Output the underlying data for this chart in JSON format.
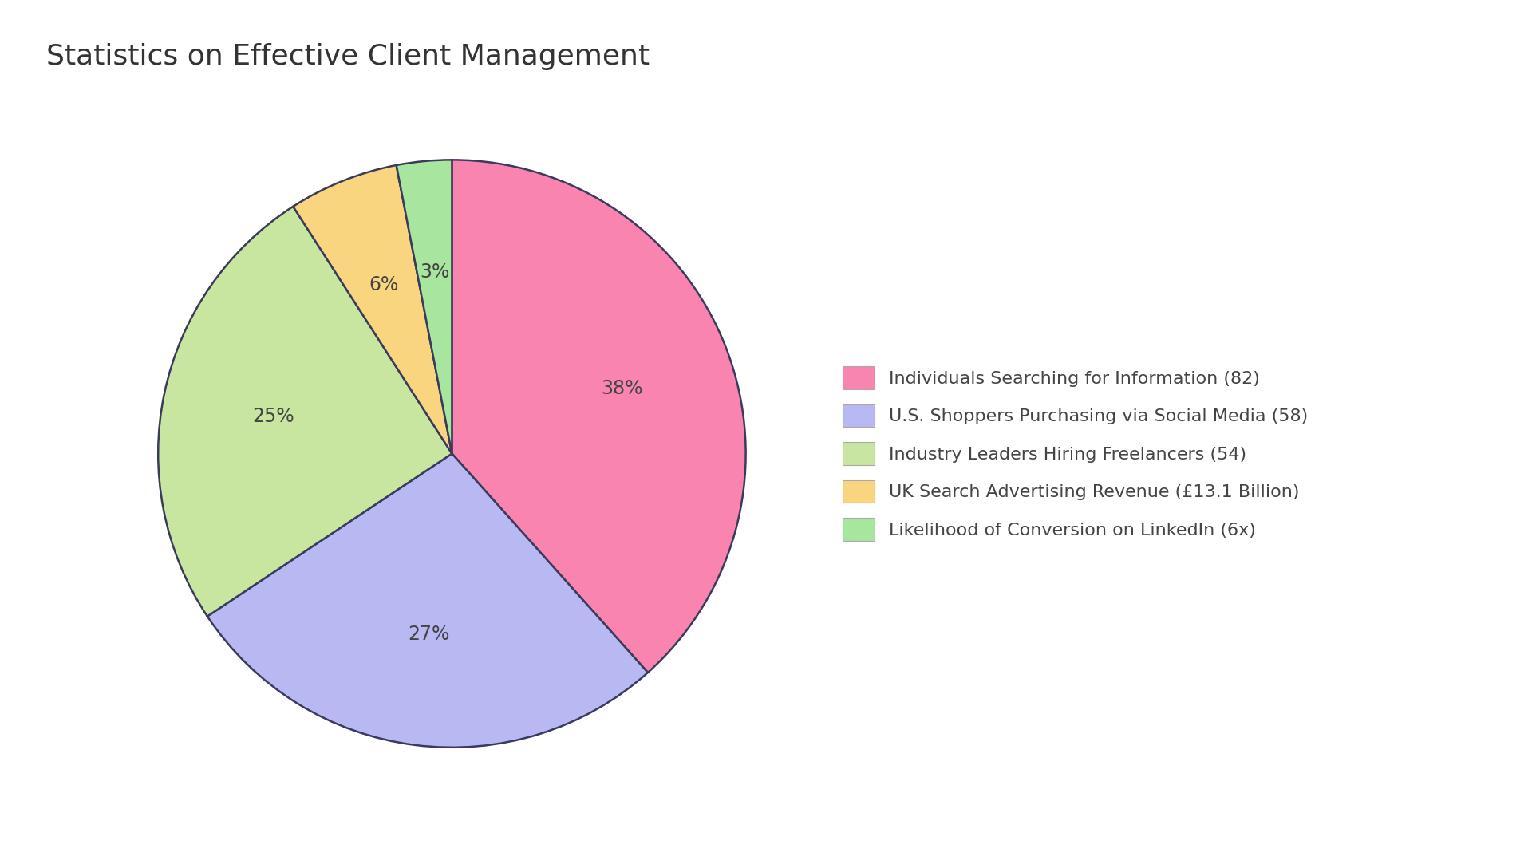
{
  "title": "Statistics on Effective Client Management",
  "slices": [
    38,
    27,
    25,
    6,
    3
  ],
  "colors": [
    "#F984B0",
    "#B8B8F3",
    "#C8E6A0",
    "#F9D580",
    "#A8E6A0"
  ],
  "labels": [
    "38%",
    "27%",
    "25%",
    "6%",
    "3%"
  ],
  "legend_labels": [
    "Individuals Searching for Information (82)",
    "U.S. Shoppers Purchasing via Social Media (58)",
    "Industry Leaders Hiring Freelancers (54)",
    "UK Search Advertising Revenue (£13.1 Billion)",
    "Likelihood of Conversion on LinkedIn (6x)"
  ],
  "startangle": 90,
  "background_color": "#FFFFFF",
  "title_color": "#333333",
  "text_color": "#444444",
  "edge_color": "#3A3A5C",
  "title_fontsize": 26,
  "label_fontsize": 17,
  "legend_fontsize": 16
}
